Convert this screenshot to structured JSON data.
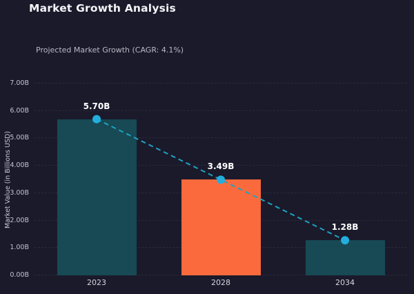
{
  "page": {
    "title": "Market Growth Analysis",
    "subtitle": "Projected Market Growth (CAGR: 4.1%)"
  },
  "chart_data": {
    "type": "bar",
    "title": "Market Growth Analysis",
    "subtitle": "Projected Market Growth (CAGR: 4.1%)",
    "ylabel": "Market Value (in Billions USD)",
    "xlabel": "",
    "categories": [
      "2023",
      "2028",
      "2034"
    ],
    "values": [
      5.7,
      3.49,
      1.28
    ],
    "value_labels": [
      "5.70B",
      "3.49B",
      "1.28B"
    ],
    "ylim": [
      0,
      7
    ],
    "ytick_labels": [
      "0.00B",
      "1.00B",
      "2.00B",
      "3.00B",
      "4.00B",
      "5.00B",
      "6.00B",
      "7.00B"
    ],
    "legend": "none",
    "grid": "faint-horizontal-dashed",
    "background_color": "#1a1a2b",
    "bar_colors": [
      "#174a54",
      "#fb6a3c",
      "#174a54"
    ],
    "trend_line": {
      "style": "dashed",
      "color": "#1fa3c2",
      "marker_color": "#23aede",
      "connects": "bar-top values"
    }
  }
}
